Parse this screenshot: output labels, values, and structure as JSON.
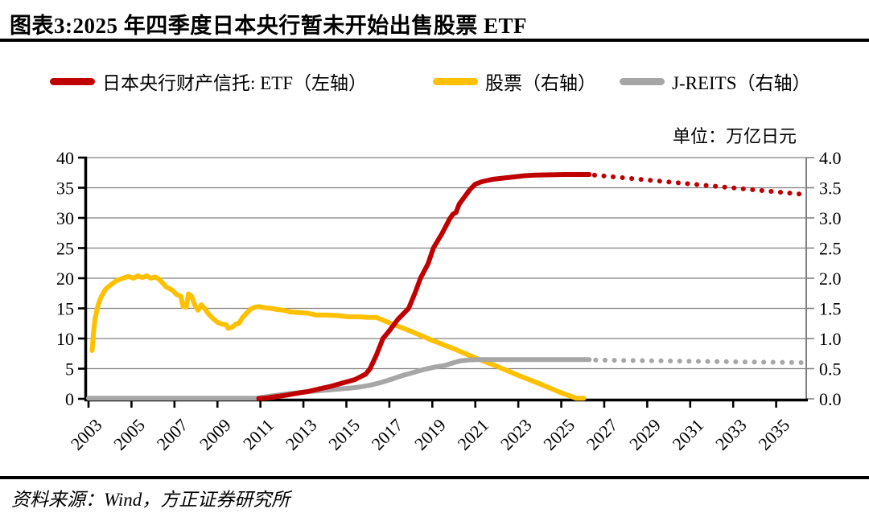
{
  "header": {
    "title": "图表3:2025 年四季度日本央行暂未开始出售股票 ETF"
  },
  "legend": {
    "items": [
      {
        "label": "日本央行财产信托: ETF（左轴）",
        "color": "#C00000"
      },
      {
        "label": "股票（右轴）",
        "color": "#FFC000"
      },
      {
        "label": "J-REITS（右轴）",
        "color": "#A6A6A6"
      }
    ]
  },
  "footer": {
    "source": "资料来源：Wind，方正证券研究所"
  },
  "chart_data": {
    "type": "line",
    "unit_note": "单位：万亿日元",
    "x_range": [
      2003,
      2036.4
    ],
    "x_ticks": [
      2003,
      2005,
      2007,
      2009,
      2011,
      2013,
      2015,
      2017,
      2019,
      2021,
      2023,
      2025,
      2027,
      2029,
      2031,
      2033,
      2035
    ],
    "y_left": {
      "label": "左轴",
      "range": [
        0,
        40
      ],
      "ticks": [
        0,
        5,
        10,
        15,
        20,
        25,
        30,
        35,
        40
      ]
    },
    "y_right": {
      "label": "右轴",
      "range": [
        0,
        4
      ],
      "ticks": [
        "0.0",
        "0.5",
        "1.0",
        "1.5",
        "2.0",
        "2.5",
        "3.0",
        "3.5",
        "4.0"
      ]
    },
    "grid": "horizontal",
    "colors": {
      "grid": "#808080",
      "axis": "#000000",
      "right_axis": "#808080"
    },
    "series": [
      {
        "key": "stocks",
        "legend": "股票（右轴）",
        "axis": "right",
        "color": "#FFC000",
        "style": "solid",
        "points": [
          [
            2003.17,
            0.8
          ],
          [
            2003.22,
            1.05
          ],
          [
            2003.3,
            1.32
          ],
          [
            2003.45,
            1.56
          ],
          [
            2003.6,
            1.7
          ],
          [
            2003.8,
            1.82
          ],
          [
            2004.0,
            1.88
          ],
          [
            2004.3,
            1.96
          ],
          [
            2004.6,
            2.0
          ],
          [
            2004.85,
            2.03
          ],
          [
            2005.1,
            2.0
          ],
          [
            2005.3,
            2.04
          ],
          [
            2005.5,
            2.01
          ],
          [
            2005.7,
            2.04
          ],
          [
            2005.9,
            2.0
          ],
          [
            2006.1,
            2.02
          ],
          [
            2006.3,
            1.98
          ],
          [
            2006.6,
            1.86
          ],
          [
            2006.9,
            1.8
          ],
          [
            2007.1,
            1.73
          ],
          [
            2007.3,
            1.7
          ],
          [
            2007.4,
            1.53
          ],
          [
            2007.55,
            1.52
          ],
          [
            2007.65,
            1.74
          ],
          [
            2007.8,
            1.7
          ],
          [
            2007.95,
            1.55
          ],
          [
            2008.1,
            1.47
          ],
          [
            2008.25,
            1.56
          ],
          [
            2008.4,
            1.5
          ],
          [
            2008.6,
            1.4
          ],
          [
            2008.8,
            1.33
          ],
          [
            2009.0,
            1.27
          ],
          [
            2009.2,
            1.24
          ],
          [
            2009.4,
            1.23
          ],
          [
            2009.5,
            1.17
          ],
          [
            2009.7,
            1.19
          ],
          [
            2009.85,
            1.24
          ],
          [
            2010.0,
            1.25
          ],
          [
            2010.15,
            1.34
          ],
          [
            2010.35,
            1.42
          ],
          [
            2010.55,
            1.49
          ],
          [
            2010.75,
            1.52
          ],
          [
            2010.95,
            1.53
          ],
          [
            2011.2,
            1.51
          ],
          [
            2011.5,
            1.5
          ],
          [
            2011.8,
            1.48
          ],
          [
            2012.1,
            1.47
          ],
          [
            2012.4,
            1.44
          ],
          [
            2012.8,
            1.43
          ],
          [
            2013.2,
            1.42
          ],
          [
            2013.6,
            1.39
          ],
          [
            2014.1,
            1.39
          ],
          [
            2014.6,
            1.38
          ],
          [
            2015.1,
            1.36
          ],
          [
            2015.6,
            1.36
          ],
          [
            2016.0,
            1.35
          ],
          [
            2016.4,
            1.35
          ],
          [
            2017.0,
            1.26
          ],
          [
            2018.0,
            1.12
          ],
          [
            2019.0,
            0.97
          ],
          [
            2020.0,
            0.83
          ],
          [
            2021.0,
            0.68
          ],
          [
            2022.0,
            0.54
          ],
          [
            2023.0,
            0.39
          ],
          [
            2024.0,
            0.25
          ],
          [
            2025.0,
            0.1
          ],
          [
            2025.7,
            0.01
          ],
          [
            2026.05,
            0.01
          ]
        ]
      },
      {
        "key": "jreits_actual",
        "legend": "J-REITS（右轴）",
        "axis": "right",
        "color": "#A6A6A6",
        "style": "solid",
        "points": [
          [
            2003.0,
            0.01
          ],
          [
            2010.8,
            0.01
          ],
          [
            2011.3,
            0.035
          ],
          [
            2011.7,
            0.055
          ],
          [
            2012.1,
            0.075
          ],
          [
            2012.6,
            0.095
          ],
          [
            2013.1,
            0.115
          ],
          [
            2013.6,
            0.13
          ],
          [
            2014.1,
            0.145
          ],
          [
            2014.6,
            0.16
          ],
          [
            2015.1,
            0.175
          ],
          [
            2015.6,
            0.195
          ],
          [
            2016.1,
            0.225
          ],
          [
            2016.6,
            0.27
          ],
          [
            2017.1,
            0.325
          ],
          [
            2017.6,
            0.385
          ],
          [
            2018.1,
            0.435
          ],
          [
            2018.6,
            0.485
          ],
          [
            2019.1,
            0.525
          ],
          [
            2019.6,
            0.555
          ],
          [
            2020.0,
            0.6
          ],
          [
            2020.3,
            0.63
          ],
          [
            2020.7,
            0.645
          ],
          [
            2021.1,
            0.65
          ],
          [
            2026.3,
            0.65
          ]
        ]
      },
      {
        "key": "jreits_projection",
        "legend": "J-REITS（右轴）",
        "axis": "right",
        "color": "#A6A6A6",
        "style": "dotted",
        "points": [
          [
            2026.6,
            0.643
          ],
          [
            2036.3,
            0.6
          ]
        ]
      },
      {
        "key": "etf_actual",
        "legend": "日本央行财产信托: ETF（左轴）",
        "axis": "left",
        "color": "#C00000",
        "style": "solid",
        "points": [
          [
            2010.92,
            0.05
          ],
          [
            2011.3,
            0.15
          ],
          [
            2011.7,
            0.35
          ],
          [
            2012.1,
            0.55
          ],
          [
            2012.6,
            0.85
          ],
          [
            2013.2,
            1.2
          ],
          [
            2013.8,
            1.7
          ],
          [
            2014.3,
            2.1
          ],
          [
            2014.8,
            2.6
          ],
          [
            2015.4,
            3.2
          ],
          [
            2015.9,
            4.1
          ],
          [
            2016.1,
            5.0
          ],
          [
            2016.4,
            7.3
          ],
          [
            2016.7,
            10.0
          ],
          [
            2017.0,
            11.3
          ],
          [
            2017.4,
            13.2
          ],
          [
            2017.9,
            15.0
          ],
          [
            2018.2,
            17.6
          ],
          [
            2018.45,
            20.0
          ],
          [
            2018.8,
            22.4
          ],
          [
            2019.05,
            25.0
          ],
          [
            2019.45,
            27.4
          ],
          [
            2019.8,
            29.8
          ],
          [
            2019.95,
            30.6
          ],
          [
            2020.1,
            30.9
          ],
          [
            2020.25,
            32.3
          ],
          [
            2020.5,
            33.5
          ],
          [
            2020.75,
            34.7
          ],
          [
            2021.0,
            35.6
          ],
          [
            2021.3,
            36.0
          ],
          [
            2021.8,
            36.4
          ],
          [
            2022.3,
            36.6
          ],
          [
            2022.8,
            36.8
          ],
          [
            2023.3,
            37.0
          ],
          [
            2023.8,
            37.1
          ],
          [
            2024.5,
            37.15
          ],
          [
            2025.2,
            37.2
          ],
          [
            2026.3,
            37.2
          ]
        ]
      },
      {
        "key": "etf_projection",
        "legend": "日本央行财产信托: ETF（左轴）",
        "axis": "left",
        "color": "#C00000",
        "style": "dotted",
        "points": [
          [
            2026.55,
            37.1
          ],
          [
            2036.3,
            33.9
          ]
        ]
      }
    ]
  }
}
